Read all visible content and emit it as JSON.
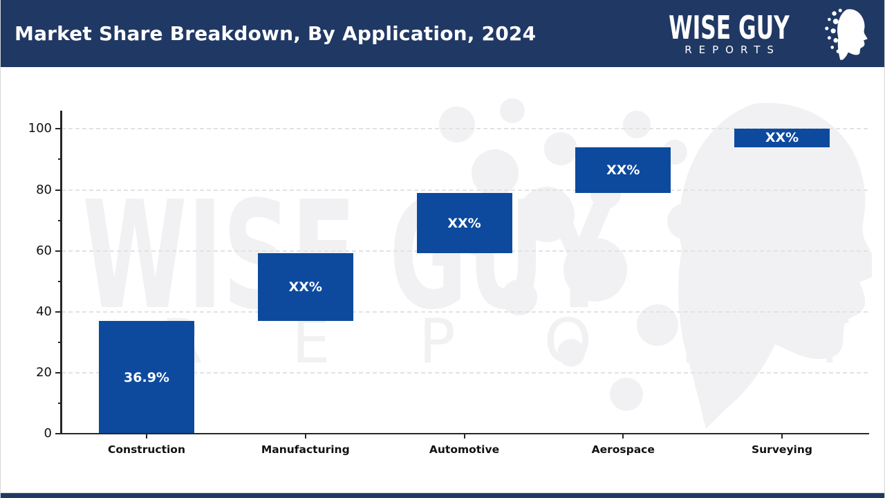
{
  "header": {
    "title": "Market Share Breakdown, By Application, 2024",
    "logo": {
      "line1": "WISE GUY",
      "line2": "REPORTS"
    }
  },
  "watermark": {
    "line1": "WISE GUY",
    "line2": "R E P O R T S"
  },
  "colors": {
    "header_bg": "#203864",
    "footer_bg": "#203864",
    "bar": "#0d4a9e",
    "bar_label_text": "#ffffff",
    "axis": "#262626",
    "gridline": "#e2e2e2",
    "tick_text": "#111111",
    "watermark": "#f1f1f3"
  },
  "chart_data": {
    "type": "bar",
    "subtype": "waterfall",
    "title": "Market Share Breakdown, By Application, 2024",
    "categories": [
      "Construction",
      "Manufacturing",
      "Automotive",
      "Aerospace",
      "Surveying"
    ],
    "segments": [
      {
        "category": "Construction",
        "start": 0,
        "end": 36.9,
        "label": "36.9%"
      },
      {
        "category": "Manufacturing",
        "start": 36.9,
        "end": 59.3,
        "label": "XX%"
      },
      {
        "category": "Automotive",
        "start": 59.3,
        "end": 78.9,
        "label": "XX%"
      },
      {
        "category": "Aerospace",
        "start": 78.9,
        "end": 93.9,
        "label": "XX%"
      },
      {
        "category": "Surveying",
        "start": 93.9,
        "end": 100.2,
        "label": "XX%"
      }
    ],
    "y_ticks": [
      0,
      20,
      40,
      60,
      80,
      100
    ],
    "minor_y_ticks": [
      10,
      30,
      50,
      70,
      90
    ],
    "ylim": [
      0,
      106
    ],
    "xlabel": "",
    "ylabel": "",
    "grid": "dashed-horizontal",
    "legend": "none"
  }
}
